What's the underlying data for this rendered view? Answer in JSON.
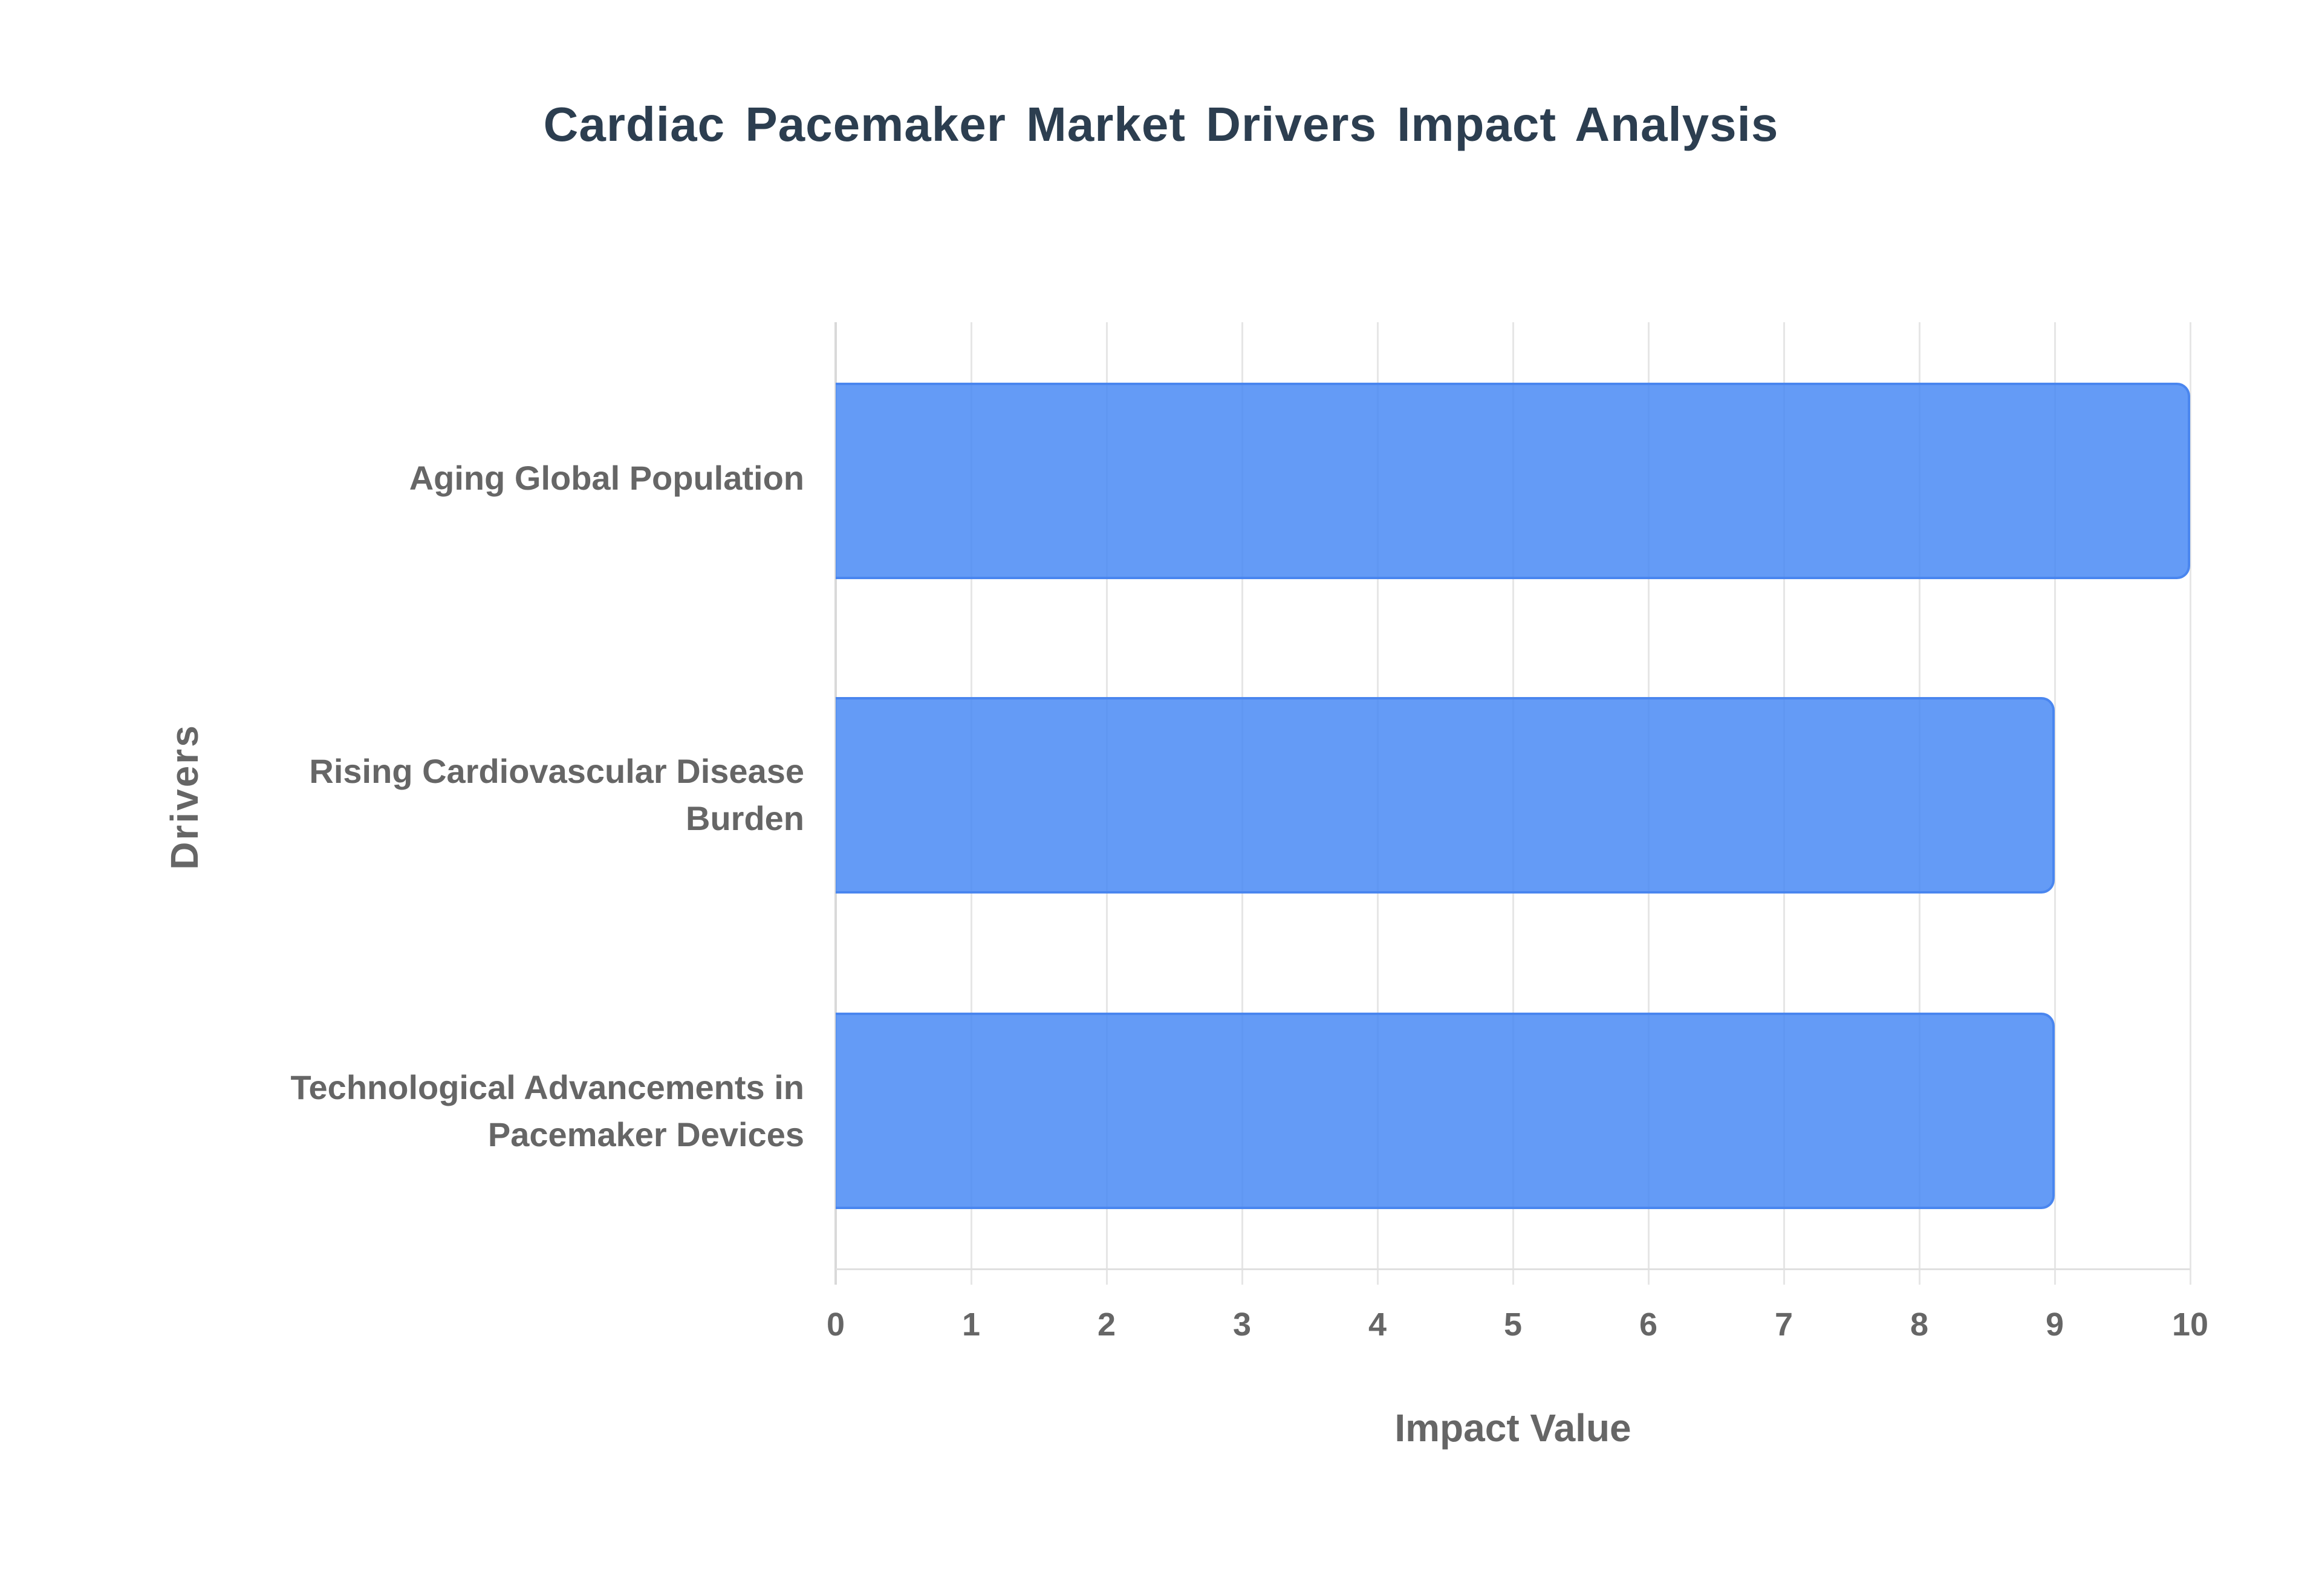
{
  "chart_data": {
    "type": "bar",
    "orientation": "horizontal",
    "title": "Cardiac Pacemaker  Market  Drivers Impact  Analysis",
    "xlabel": "Impact Value",
    "ylabel": "Drivers",
    "categories": [
      "Aging Global Population",
      "Rising Cardiovascular Disease Burden",
      "Technological Advancements in Pacemaker Devices"
    ],
    "values": [
      10,
      9,
      9
    ],
    "xlim": [
      0,
      10
    ],
    "x_ticks": [
      "0",
      "1",
      "2",
      "3",
      "4",
      "5",
      "6",
      "7",
      "8",
      "9",
      "10"
    ],
    "grid": true,
    "legend": null,
    "bar_color": "#4285f4"
  },
  "labels": {
    "cat0_line1": "Aging Global Population",
    "cat1_line1": "Rising Cardiovascular Disease",
    "cat1_line2": "Burden",
    "cat2_line1": "Technological Advancements in",
    "cat2_line2": "Pacemaker Devices"
  }
}
